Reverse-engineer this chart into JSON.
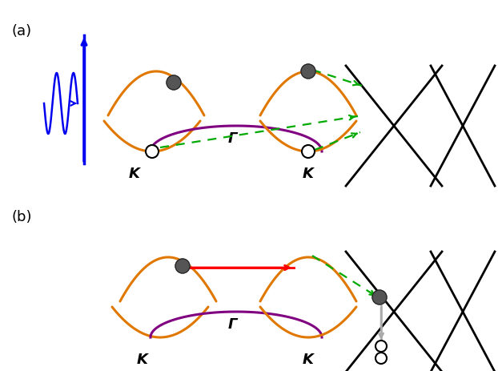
{
  "fig_width": 6.22,
  "fig_height": 4.64,
  "dpi": 100,
  "bg_color": "#ffffff",
  "border_color": "#cc0000",
  "orange_color": "#e07800",
  "purple_color": "#800080",
  "green_color": "#00aa00",
  "blue_color": "#0000ee",
  "gray_fill": "#555555",
  "label_a": "(a)",
  "label_b": "(b)",
  "label_K": "K",
  "label_Gamma": "Γ"
}
